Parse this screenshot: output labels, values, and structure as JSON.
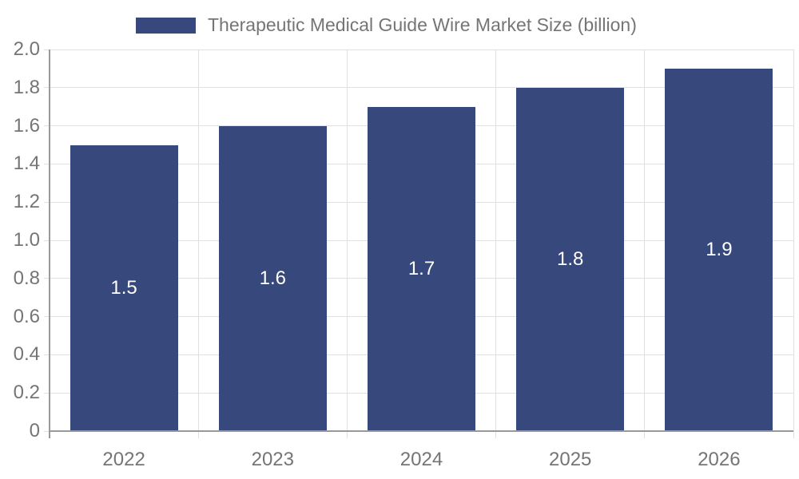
{
  "legend": {
    "label": "Therapeutic Medical Guide Wire Market Size (billion)"
  },
  "colors": {
    "bar": "#37497C",
    "grid": "#e0e0e0",
    "axis": "#999999",
    "tick_text": "#757575",
    "legend_text": "#757575",
    "value_text": "#ffffff"
  },
  "chart_data": {
    "type": "bar",
    "title": "Therapeutic Medical Guide Wire Market Size (billion)",
    "categories": [
      "2022",
      "2023",
      "2024",
      "2025",
      "2026"
    ],
    "values": [
      1.5,
      1.6,
      1.7,
      1.8,
      1.9
    ],
    "value_labels": [
      "1.5",
      "1.6",
      "1.7",
      "1.8",
      "1.9"
    ],
    "series_name": "Therapeutic Medical Guide Wire Market Size (billion)",
    "xlabel": "",
    "ylabel": "",
    "ylim": [
      0,
      2.0
    ],
    "ytick_step": 0.2,
    "ytick_labels": [
      "0",
      "0.2",
      "0.4",
      "0.6",
      "0.8",
      "1.0",
      "1.2",
      "1.4",
      "1.6",
      "1.8",
      "2.0"
    ],
    "grid": true,
    "legend_position": "top"
  }
}
